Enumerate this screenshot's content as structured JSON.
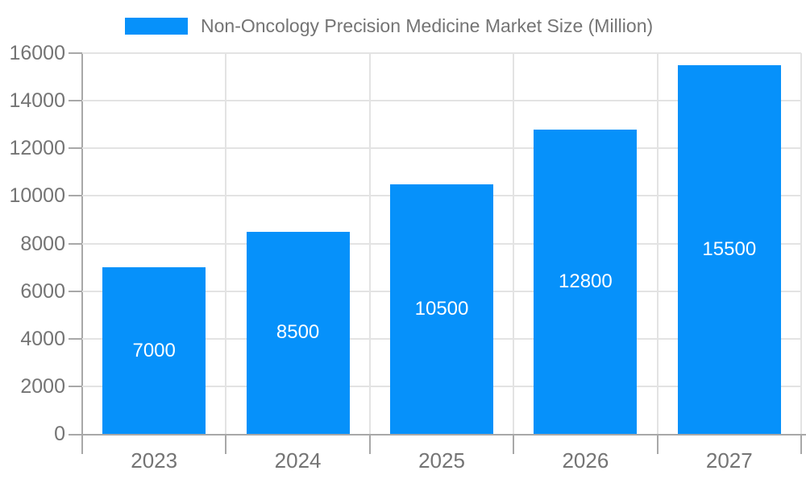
{
  "chart_data": {
    "type": "bar",
    "title": "Non-Oncology Precision Medicine Market Size (Million)",
    "categories": [
      "2023",
      "2024",
      "2025",
      "2026",
      "2027"
    ],
    "values": [
      7000,
      8500,
      10500,
      12800,
      15500
    ],
    "xlabel": "",
    "ylabel": "",
    "ylim": [
      0,
      16000
    ],
    "y_ticks": [
      0,
      2000,
      4000,
      6000,
      8000,
      10000,
      12000,
      14000,
      16000
    ],
    "grid": true,
    "legend_position": "top",
    "bar_labels_inside": true,
    "colors": {
      "bar": "#0691fa",
      "grid": "#e3e3e3",
      "axis": "#a8a8a8",
      "text": "#747474",
      "bar_label": "#ffffff",
      "background": "#ffffff"
    }
  }
}
